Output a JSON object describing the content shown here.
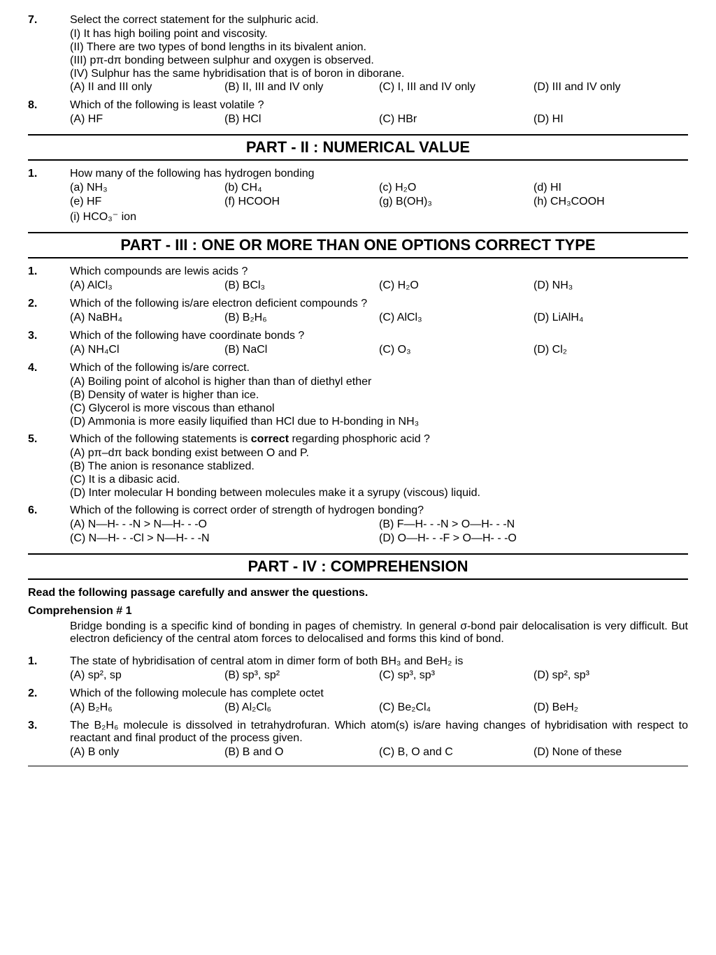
{
  "q7": {
    "num": "7.",
    "text": "Select the correct statement for the sulphuric acid.",
    "items": [
      "(I) It has high boiling point and viscosity.",
      "(II) There are two types of bond lengths in its bivalent anion.",
      "(III) pπ-dπ bonding between sulphur and oxygen is observed.",
      "(IV) Sulphur has the same hybridisation that is of boron in diborane."
    ],
    "opts": [
      "(A) II and III only",
      "(B) II, III and IV only",
      "(C) I, III and IV only",
      "(D) III and IV only"
    ]
  },
  "q8": {
    "num": "8.",
    "text": "Which of the following is least volatile ?",
    "opts": [
      "(A) HF",
      "(B) HCl",
      "(C) HBr",
      "(D) HI"
    ]
  },
  "part2_title": "PART - II : NUMERICAL VALUE",
  "p2q1": {
    "num": "1.",
    "text": "How many of the following has hydrogen bonding",
    "subs": [
      "(a) NH₃",
      "(b) CH₄",
      "(c) H₂O",
      "(d) HI",
      "(e) HF",
      "(f) HCOOH",
      "(g) B(OH)₃",
      "(h) CH₃COOH",
      "(i) HCO₃⁻ ion"
    ]
  },
  "part3_title": "PART - III : ONE OR MORE THAN ONE OPTIONS CORRECT TYPE",
  "p3q1": {
    "num": "1.",
    "text": "Which compounds are lewis acids ?",
    "opts": [
      "(A) AlCl₃",
      "(B) BCl₃",
      "(C) H₂O",
      "(D) NH₃"
    ]
  },
  "p3q2": {
    "num": "2.",
    "text": "Which of the following is/are electron deficient compounds ?",
    "opts": [
      "(A) NaBH₄",
      "(B) B₂H₆",
      "(C) AlCl₃",
      "(D) LiAlH₄"
    ]
  },
  "p3q3": {
    "num": "3.",
    "text": "Which of the following have coordinate bonds ?",
    "opts": [
      "(A) NH₄Cl",
      "(B) NaCl",
      "(C) O₃",
      "(D) Cl₂"
    ]
  },
  "p3q4": {
    "num": "4.",
    "text": "Which of the following is/are correct.",
    "items": [
      "(A) Boiling point of alcohol is higher than than of diethyl ether",
      "(B) Density of water is higher than ice.",
      "(C) Glycerol is more viscous than ethanol",
      "(D) Ammonia is more easily liquified than HCl due to H-bonding in NH₃"
    ]
  },
  "p3q5": {
    "num": "5.",
    "text_pre": "Which of the following statements is ",
    "text_bold": "correct",
    "text_post": " regarding phosphoric acid ?",
    "items": [
      "(A) pπ–dπ back bonding exist between O and P.",
      "(B) The anion is resonance stablized.",
      "(C) It is a dibasic acid.",
      "(D) Inter molecular H bonding between molecules make it a syrupy (viscous) liquid."
    ]
  },
  "p3q6": {
    "num": "6.",
    "text": "Which of the following is correct order of strength of hydrogen bonding?",
    "opts": [
      "(A) N—H- - -N  >  N—H- - -O",
      "(B) F—H- - -N  >  O—H- - -N",
      "(C) N—H- - -Cl  >  N—H- - -N",
      "(D) O—H- - -F  >  O—H- - -O"
    ]
  },
  "part4_title": "PART - IV : COMPREHENSION",
  "comp_instr": "Read the following passage carefully and answer the questions.",
  "comp1_title": "Comprehension # 1",
  "comp1_text": "Bridge bonding is a specific kind of bonding in pages of chemistry. In general σ-bond pair delocalisation is very difficult. But electron deficiency of the central atom forces to delocalised and forms this kind of bond.",
  "p4q1": {
    "num": "1.",
    "text": "The state of hybridisation  of central atom in dimer  form of both BH₃ and BeH₂ is",
    "opts": [
      "(A) sp², sp",
      "(B) sp³, sp²",
      "(C) sp³, sp³",
      "(D) sp², sp³"
    ]
  },
  "p4q2": {
    "num": "2.",
    "text": "Which of the following molecule has complete octet",
    "opts": [
      "(A) B₂H₆",
      "(B) Al₂Cl₆",
      "(C) Be₂Cl₄",
      "(D) BeH₂"
    ]
  },
  "p4q3": {
    "num": "3.",
    "text": "The B₂H₆ molecule is dissolved in tetrahydrofuran. Which atom(s) is/are having changes of hybridisation with respect to reactant and final product of the process given.",
    "opts": [
      "(A) B only",
      "(B) B and O",
      "(C) B, O and C",
      "(D) None of these"
    ]
  }
}
